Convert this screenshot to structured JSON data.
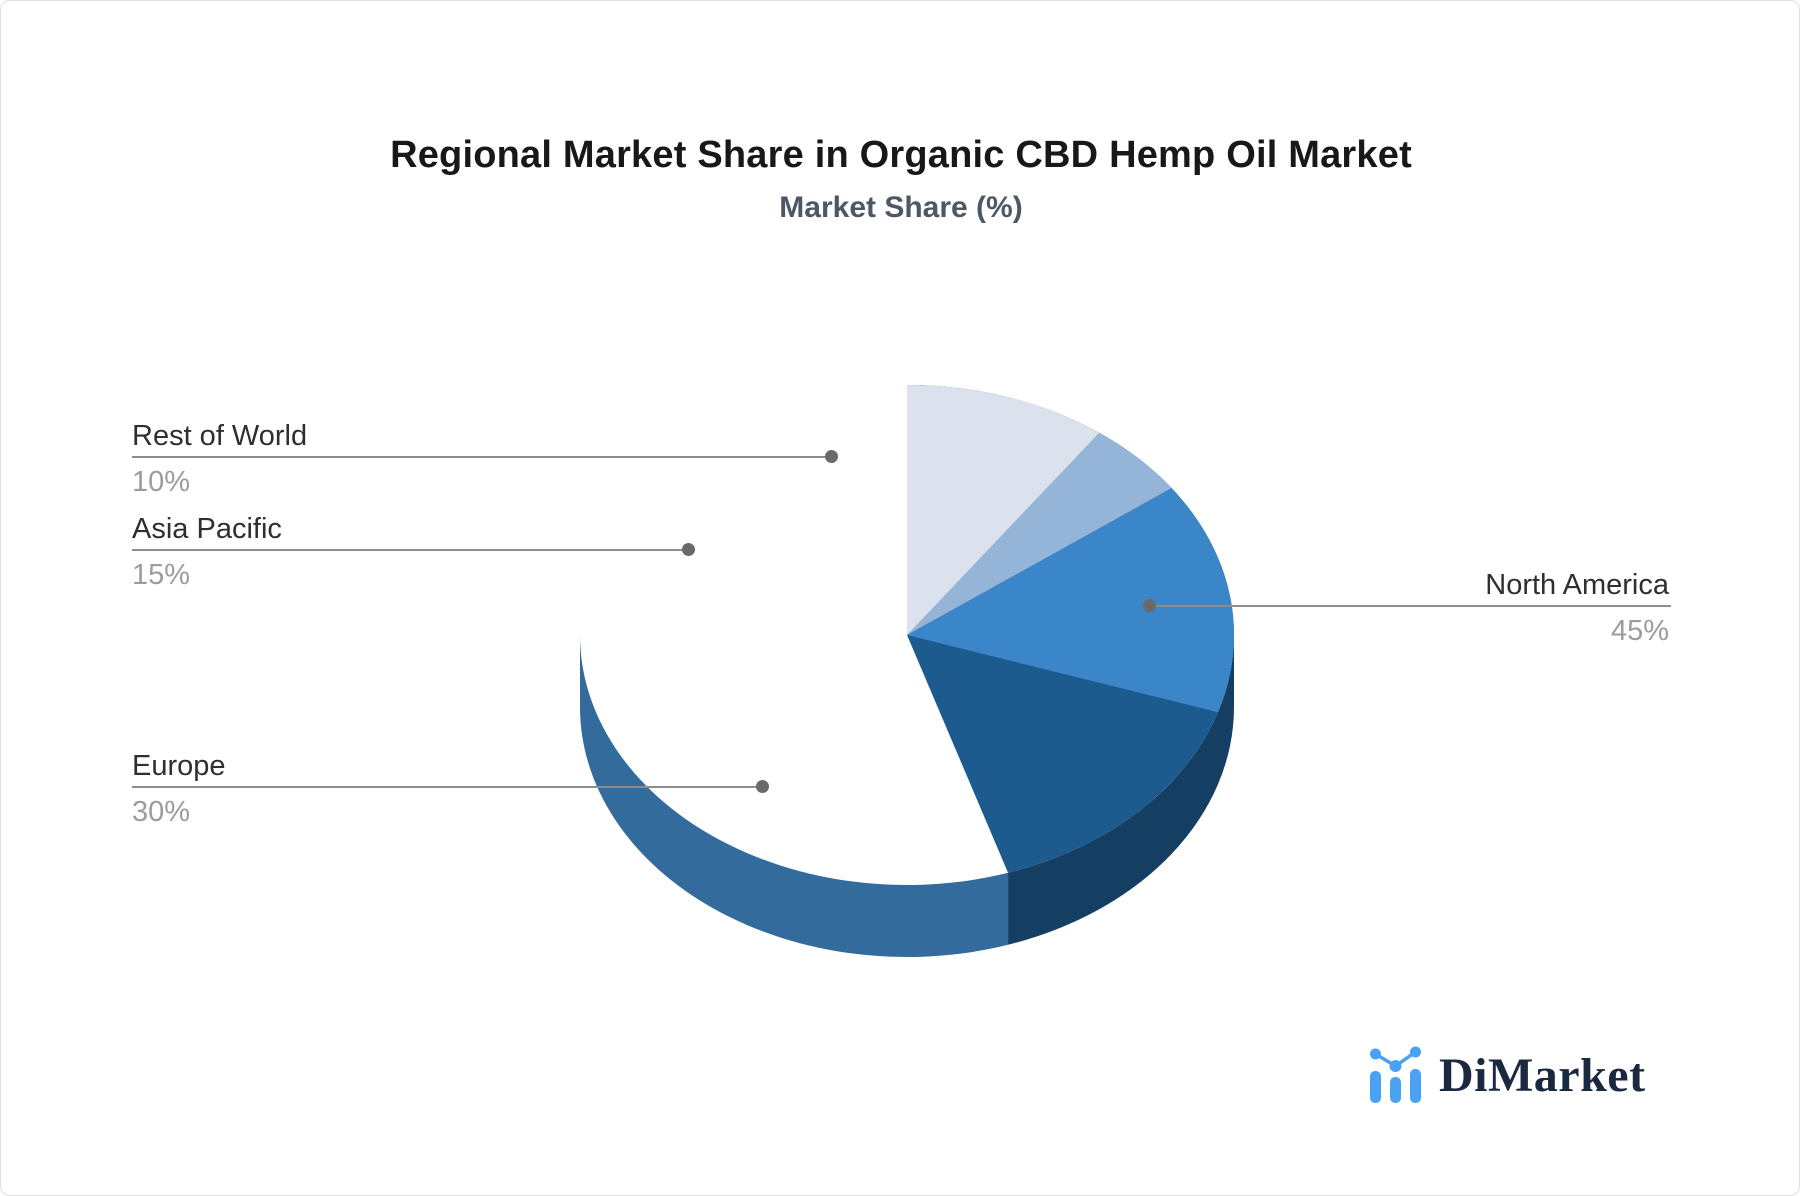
{
  "title": "Regional Market Share in Organic CBD Hemp Oil Market",
  "subtitle": "Market Share (%)",
  "logo": {
    "text": "DiMarket",
    "icon": "bar-chart-trendline-icon",
    "icon_color": "#4aa3f2",
    "text_color": "#1b2940"
  },
  "colors": {
    "background": "#ffffff",
    "title": "#181818",
    "subtitle": "#4d5866",
    "label_name": "#2f2f2f",
    "label_value": "#9c9c9c",
    "leader_line": "#8d8d8d",
    "leader_dot": "#6a6a6a"
  },
  "chart_data": {
    "type": "pie",
    "style": "3d",
    "title": "Regional Market Share in Organic CBD Hemp Oil Market",
    "subtitle": "Market Share (%)",
    "unit": "%",
    "start_angle_deg": 0,
    "direction": "clockwise",
    "legend_position": "callout-labels",
    "slices": [
      {
        "label": "North America",
        "value": 45,
        "pct_label": "45%",
        "color": "#1d5a8e",
        "rim_color": "#153e63",
        "label_side": "right"
      },
      {
        "label": "Europe",
        "value": 30,
        "pct_label": "30%",
        "color": "#3a86c8",
        "rim_color": "#336b9c",
        "label_side": "left"
      },
      {
        "label": "Asia Pacific",
        "value": 15,
        "pct_label": "15%",
        "color": "#94b5d8",
        "rim_color": null,
        "label_side": "left"
      },
      {
        "label": "Rest of World",
        "value": 10,
        "pct_label": "10%",
        "color": "#dbe2ee",
        "rim_color": null,
        "label_side": "left"
      }
    ]
  }
}
